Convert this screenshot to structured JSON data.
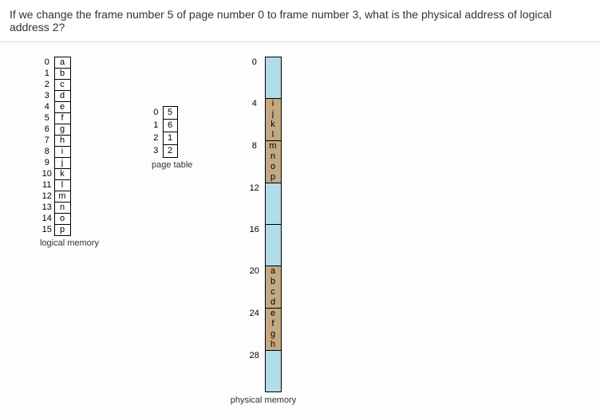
{
  "question": "If we change the frame number 5 of page number 0 to frame number 3, what is the physical address of logical address 2?",
  "logical_memory": {
    "caption": "logical memory",
    "rows": [
      {
        "i": "0",
        "v": "a"
      },
      {
        "i": "1",
        "v": "b"
      },
      {
        "i": "2",
        "v": "c"
      },
      {
        "i": "3",
        "v": "d"
      },
      {
        "i": "4",
        "v": "e"
      },
      {
        "i": "5",
        "v": "f"
      },
      {
        "i": "6",
        "v": "g"
      },
      {
        "i": "7",
        "v": "h"
      },
      {
        "i": "8",
        "v": "i"
      },
      {
        "i": "9",
        "v": "j"
      },
      {
        "i": "10",
        "v": "k"
      },
      {
        "i": "11",
        "v": "l"
      },
      {
        "i": "12",
        "v": "m"
      },
      {
        "i": "13",
        "v": "n"
      },
      {
        "i": "14",
        "v": "o"
      },
      {
        "i": "15",
        "v": "p"
      }
    ]
  },
  "page_table": {
    "caption": "page table",
    "rows": [
      {
        "i": "0",
        "v": "5"
      },
      {
        "i": "1",
        "v": "6"
      },
      {
        "i": "2",
        "v": "1"
      },
      {
        "i": "3",
        "v": "2"
      }
    ]
  },
  "physical_memory": {
    "caption": "physical memory",
    "frames": [
      {
        "label": "0",
        "cells": [
          "",
          "",
          "",
          ""
        ],
        "filled": false
      },
      {
        "label": "4",
        "cells": [
          "i",
          "j",
          "k",
          "l"
        ],
        "filled": true
      },
      {
        "label": "8",
        "cells": [
          "m",
          "n",
          "o",
          "p"
        ],
        "filled": true
      },
      {
        "label": "12",
        "cells": [
          "",
          "",
          "",
          ""
        ],
        "filled": false
      },
      {
        "label": "16",
        "cells": [
          "",
          "",
          "",
          ""
        ],
        "filled": false
      },
      {
        "label": "20",
        "cells": [
          "a",
          "b",
          "c",
          "d"
        ],
        "filled": true
      },
      {
        "label": "24",
        "cells": [
          "e",
          "f",
          "g",
          "h"
        ],
        "filled": true
      },
      {
        "label": "28",
        "cells": [
          "",
          "",
          "",
          ""
        ],
        "filled": false
      }
    ]
  }
}
